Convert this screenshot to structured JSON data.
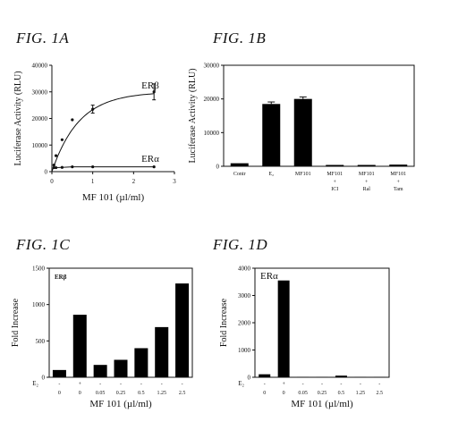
{
  "figures": {
    "a": {
      "label": "FIG. 1A"
    },
    "b": {
      "label": "FIG. 1B"
    },
    "c": {
      "label": "FIG. 1C"
    },
    "d": {
      "label": "FIG. 1D"
    }
  },
  "chart_data": [
    {
      "id": "1A",
      "type": "line",
      "xlabel": "MF 101 (µl/ml)",
      "ylabel": "Luciferase Activity (RLU)",
      "xlim": [
        0,
        3
      ],
      "ylim": [
        0,
        40000
      ],
      "xticks": [
        "0",
        "1",
        "2",
        "3"
      ],
      "yticks": [
        "0",
        "10000",
        "20000",
        "30000",
        "40000"
      ],
      "series": [
        {
          "name": "ERβ",
          "x": [
            0.05,
            0.1,
            0.25,
            0.5,
            1.0,
            2.5
          ],
          "y": [
            2500,
            6000,
            12000,
            19500,
            23500,
            30000
          ],
          "err": [
            0,
            0,
            0,
            0,
            1500,
            3000
          ]
        },
        {
          "name": "ERα",
          "x": [
            0.05,
            0.1,
            0.25,
            0.5,
            1.0,
            2.5
          ],
          "y": [
            1500,
            1500,
            1600,
            1800,
            1800,
            1800
          ],
          "err": [
            0,
            0,
            0,
            0,
            0,
            0
          ]
        }
      ]
    },
    {
      "id": "1B",
      "type": "bar",
      "ylabel": "Luciferase Activity (RLU)",
      "ylim": [
        0,
        30000
      ],
      "yticks": [
        "0",
        "10000",
        "20000",
        "30000"
      ],
      "categories": [
        {
          "label": "Contr",
          "sub": []
        },
        {
          "label": "E₂",
          "sub": []
        },
        {
          "label": "MF101",
          "sub": []
        },
        {
          "label": "MF101",
          "sub": [
            "+",
            "ICI"
          ]
        },
        {
          "label": "MF101",
          "sub": [
            "+",
            "Ral"
          ]
        },
        {
          "label": "MF101",
          "sub": [
            "+",
            "Tam"
          ]
        }
      ],
      "values": [
        900,
        18500,
        20000,
        400,
        400,
        500
      ],
      "errors": [
        0,
        600,
        600,
        0,
        0,
        0
      ]
    },
    {
      "id": "1C",
      "type": "bar",
      "inner_label": "ERβ",
      "xlabel": "MF 101 (µl/ml)",
      "ylabel": "Fold Increase",
      "ylim": [
        0,
        1500
      ],
      "yticks": [
        "0",
        "500",
        "1000",
        "1500"
      ],
      "row1_label": "E₂",
      "row1": [
        "-",
        "+",
        "-",
        "-",
        "-",
        "-",
        "-"
      ],
      "row2": [
        "0",
        "0",
        "0.05",
        "0.25",
        "0.5",
        "1.25",
        "2.5"
      ],
      "values": [
        100,
        860,
        170,
        240,
        400,
        690,
        1290
      ]
    },
    {
      "id": "1D",
      "type": "bar",
      "inner_label": "ERα",
      "xlabel": "MF 101 (µl/ml)",
      "ylabel": "Fold Increase",
      "ylim": [
        0,
        4000
      ],
      "yticks": [
        "0",
        "1000",
        "2000",
        "3000",
        "4000"
      ],
      "row1_label": "E₂",
      "row1": [
        "-",
        "+",
        "-",
        "-",
        "-",
        "-",
        "-"
      ],
      "row2": [
        "0",
        "0",
        "0.05",
        "0.25",
        "0.5",
        "1.25",
        "2.5"
      ],
      "values": [
        110,
        3550,
        10,
        10,
        60,
        10,
        10
      ]
    }
  ]
}
